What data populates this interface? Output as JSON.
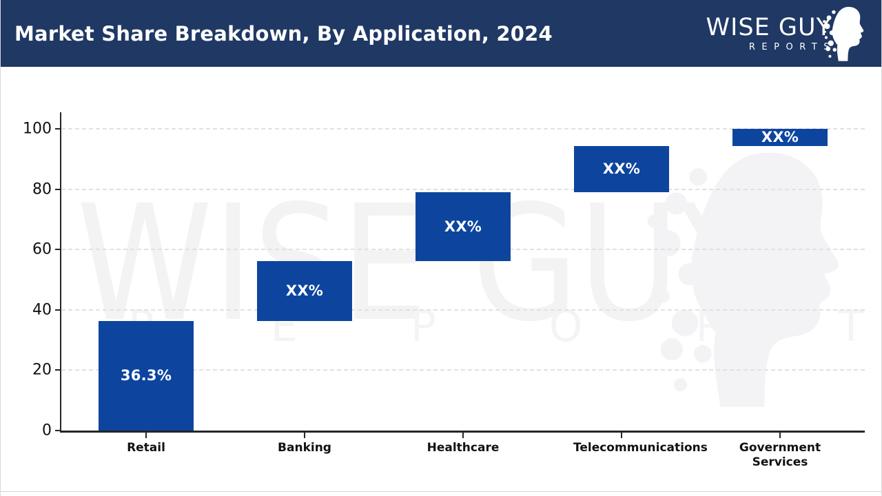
{
  "header": {
    "title": "Market Share Breakdown, By Application, 2024",
    "logo": {
      "line1": "WISE GUY",
      "line2": "REPORTS",
      "icon": "head-dots-logo"
    }
  },
  "watermark": {
    "line1": "WISE GUY",
    "line2": "R E P O R T S",
    "icon": "head-dots-watermark"
  },
  "chart_data": {
    "type": "bar",
    "variant": "waterfall",
    "title": "Market Share Breakdown, By Application, 2024",
    "categories": [
      "Retail",
      "Banking",
      "Healthcare",
      "Telecommunications",
      "Government Services"
    ],
    "series": [
      {
        "name": "Market share (%)",
        "segments": [
          [
            0,
            36.3
          ],
          [
            36.3,
            56.2
          ],
          [
            56.2,
            79.0
          ],
          [
            79.0,
            94.3
          ],
          [
            94.3,
            100.0
          ]
        ]
      }
    ],
    "bar_labels": [
      "36.3%",
      "XX%",
      "XX%",
      "XX%",
      "XX%"
    ],
    "xlabel": "",
    "ylabel": "",
    "ylim": [
      0,
      105.5
    ],
    "yticks": [
      0,
      20,
      40,
      60,
      80,
      100
    ],
    "grid": "horizontal-dashed",
    "legend": "none",
    "bar_color": "#0d459e",
    "bar_label_color": "#ffffff",
    "axis_color": "#262626",
    "gridline_color": "#e1e1e1"
  }
}
